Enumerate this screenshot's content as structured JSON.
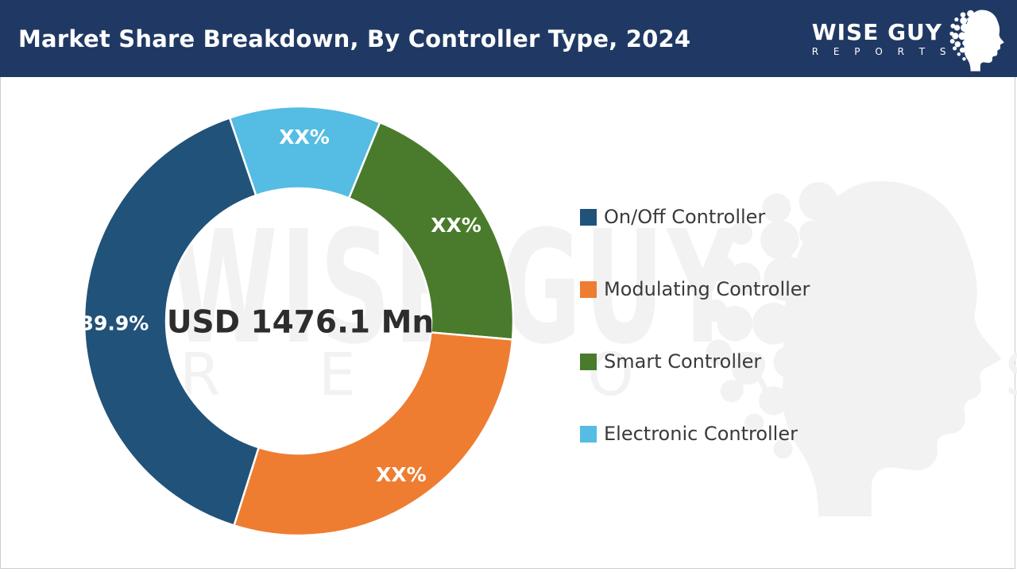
{
  "header": {
    "title": "Market Share Breakdown, By Controller Type, 2024",
    "logo": {
      "line1": "WISE GUY",
      "line2": "R E P O R T S"
    }
  },
  "watermark": {
    "line1": "WISE GUY",
    "line2": "R E P O R T S"
  },
  "colors": {
    "header_bg": "#203964",
    "watermark": "#f2f2f3",
    "frame_border": "#cccccc",
    "center_text": "#2d2d2d",
    "legend_text": "#3a3a3a",
    "slice_label_text": "#ffffff"
  },
  "chart_data": {
    "type": "pie",
    "subtype": "donut",
    "title": "Market Share Breakdown, By Controller Type, 2024",
    "center_label": "USD 1476.1 Mn",
    "start_angle_deg": 108.8,
    "direction": "clockwise",
    "legend_position": "right",
    "slices": [
      {
        "label": "On/Off Controller",
        "value_pct": 39.9,
        "display": "39.9%",
        "color": "#215279"
      },
      {
        "label": "Modulating Controller",
        "value_pct": 28.5,
        "display": "XX%",
        "color": "#ee7d31"
      },
      {
        "label": "Smart Controller",
        "value_pct": 20.2,
        "display": "XX%",
        "color": "#4a7b2c"
      },
      {
        "label": "Electronic Controller",
        "value_pct": 11.4,
        "display": "XX%",
        "color": "#55bce3"
      }
    ]
  }
}
